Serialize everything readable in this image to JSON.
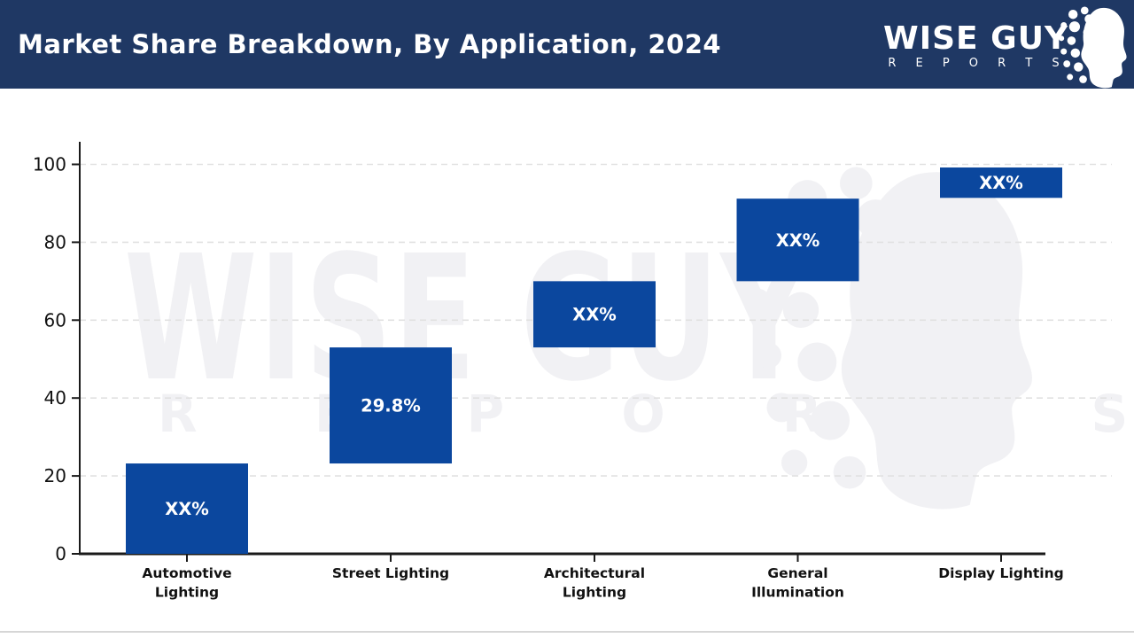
{
  "header": {
    "title": "Market Share Breakdown, By Application, 2024",
    "logo": {
      "line1": "WISE GUY",
      "line2": "R E P O R T S"
    }
  },
  "watermark": {
    "line1": "WISE GUY",
    "line2": "R E P O R T S"
  },
  "chart_data": {
    "type": "bar",
    "variant": "waterfall",
    "title": "Market Share Breakdown, By Application, 2024",
    "categories": [
      "Automotive\nLighting",
      "Street Lighting",
      "Architectural\nLighting",
      "General\nIllumination",
      "Display Lighting"
    ],
    "segments": [
      {
        "category": "Automotive\nLighting",
        "start": 0,
        "end": 23.2,
        "label": "XX%"
      },
      {
        "category": "Street Lighting",
        "start": 23.2,
        "end": 53.0,
        "label": "29.8%"
      },
      {
        "category": "Architectural\nLighting",
        "start": 53.0,
        "end": 70.0,
        "label": "XX%"
      },
      {
        "category": "General\nIllumination",
        "start": 70.0,
        "end": 91.2,
        "label": "XX%"
      },
      {
        "category": "Display Lighting",
        "start": 91.4,
        "end": 99.2,
        "label": "XX%"
      }
    ],
    "xlabel": "",
    "ylabel": "",
    "ylim": [
      0,
      105
    ],
    "yticks": [
      0,
      20,
      40,
      60,
      80,
      100
    ],
    "grid": "horizontal-dashed",
    "legend": "none",
    "bar_color": "#0b479e",
    "bar_label_color": "#ffffff",
    "axis_color": "#1a1a1a",
    "grid_color": "#e1e1e1",
    "header_bg": "#1f3864"
  }
}
